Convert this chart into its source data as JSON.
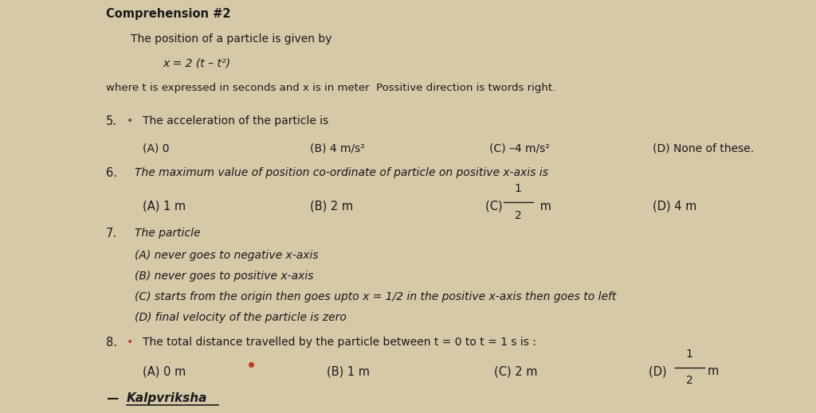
{
  "bg_color": "#d6c9a8",
  "text_color": "#1a1a1a",
  "title": "Comprehension #2",
  "subtitle_line1": "The position of a particle is given by",
  "subtitle_line2": "x = 2 (t – t²)",
  "subtitle_line3": "where t is expressed in seconds and x is in meter  Possitive direction is twords right.",
  "q5_label": "5.",
  "q5_bullet": "•",
  "q5_text": "The acceleration of the particle is",
  "q5_A": "(A) 0",
  "q5_B": "(B) 4 m/s²",
  "q5_C": "(C) –4 m/s²",
  "q5_D": "(D) None of these.",
  "q6_label": "6.",
  "q6_text": "The maximum value of position co-ordinate of particle on positive x-axis is",
  "q6_A": "(A) 1 m",
  "q6_B": "(B) 2 m",
  "q6_C_pre": "(C) ",
  "q6_C_num": "1",
  "q6_C_den": "2",
  "q6_C_post": " m",
  "q6_D": "(D) 4 m",
  "q7_label": "7.",
  "q7_text": "The particle",
  "q7_A": "(A) never goes to negative x-axis",
  "q7_B": "(B) never goes to positive x-axis",
  "q7_C": "(C) starts from the origin then goes upto x = 1/2 in the positive x-axis then goes to left",
  "q7_D": "(D) final velocity of the particle is zero",
  "q8_label": "8.",
  "q8_bullet": "•",
  "q8_text": "The total distance travelled by the particle between t = 0 to t = 1 s is :",
  "q8_A": "(A) 0 m",
  "q8_B": "(B) 1 m",
  "q8_C": "(C) 2 m",
  "q8_D_pre": "(D) ",
  "q8_D_num": "1",
  "q8_D_den": "2",
  "q8_D_post": "m",
  "footer_dash": "—",
  "footer": "Kalpvriksha",
  "q5_bullet_color": "#555555",
  "q8_bullet_color": "#c0392b",
  "red_dot_color": "#c0392b"
}
